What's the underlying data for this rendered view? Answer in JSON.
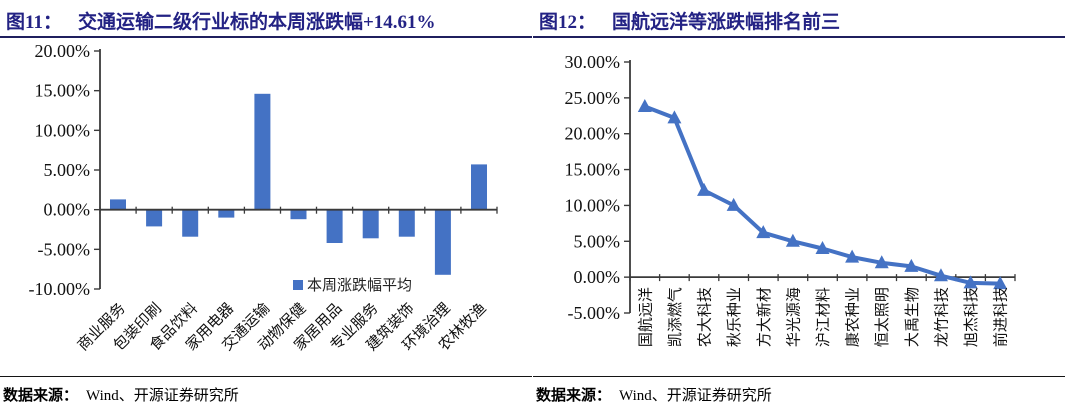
{
  "colors": {
    "accent": "#4472C4",
    "title_text": "#232284",
    "title_rule": "#1f1f5e",
    "axis": "#3a3a3a"
  },
  "chart_data": [
    {
      "type": "bar",
      "figure_label": "图11：",
      "title": "交通运输二级行业标的本周涨跌幅+14.61%",
      "legend": "本周涨跌幅平均",
      "legend_position": "inside-bottom-right",
      "categories": [
        "商业服务",
        "包装印刷",
        "食品饮料",
        "家用电器",
        "交通运输",
        "动物保健",
        "家居用品",
        "专业服务",
        "建筑装饰",
        "环境治理",
        "农林牧渔"
      ],
      "values": [
        1.3,
        -2.1,
        -3.4,
        -1.0,
        14.61,
        -1.2,
        -4.2,
        -3.6,
        -3.4,
        -8.2,
        5.7
      ],
      "ylim": [
        -10,
        20
      ],
      "ytick_step": 5,
      "ytick_format": "0.00%",
      "grid": false,
      "bar_color": "#4472C4",
      "source_label": "数据来源：",
      "source_text": "Wind、开源证券研究所"
    },
    {
      "type": "line",
      "figure_label": "图12：",
      "title": "国航远洋等涨跌幅排名前三",
      "marker": "triangle",
      "categories": [
        "国航远洋",
        "凯添燃气",
        "农大科技",
        "秋乐种业",
        "方大新材",
        "华光源海",
        "沪江材料",
        "康农种业",
        "恒太照明",
        "大禹生物",
        "龙竹科技",
        "旭杰科技",
        "前进科技"
      ],
      "values": [
        23.8,
        22.2,
        12.1,
        10.0,
        6.2,
        5.0,
        4.0,
        2.8,
        2.0,
        1.5,
        0.2,
        -0.8,
        -0.9
      ],
      "ylim": [
        -5,
        30
      ],
      "ytick_step": 5,
      "ytick_format": "0.00%",
      "grid": false,
      "line_color": "#4472C4",
      "source_label": "数据来源：",
      "source_text": "Wind、开源证券研究所"
    }
  ]
}
